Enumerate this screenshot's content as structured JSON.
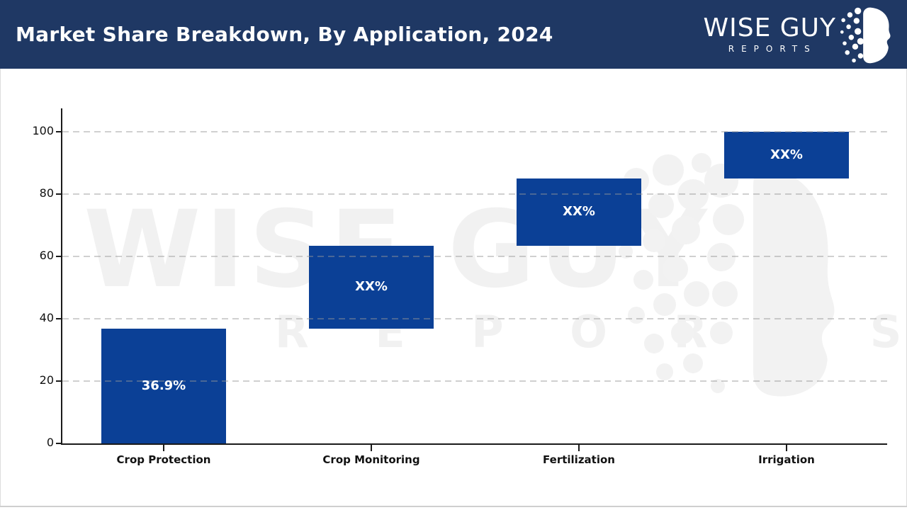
{
  "header": {
    "title": "Market Share Breakdown, By Application, 2024",
    "logo": {
      "line1": "WISE GUY",
      "line2": "REPORTS"
    }
  },
  "watermark": {
    "line1": "WISE GUY",
    "line2": "R E P O R T S"
  },
  "colors": {
    "header_bg": "#1F3864",
    "bar": "#0B4096",
    "axis": "#1a1a1a",
    "grid_dash": "#d8d8d8",
    "watermark": "#f1f1f1",
    "value_label": "#ffffff"
  },
  "chart_data": {
    "type": "bar",
    "subtype": "floating_segment_bars",
    "title": "Market Share Breakdown, By Application, 2024",
    "categories": [
      "Crop Protection",
      "Crop Monitoring",
      "Fertilization",
      "Irrigation"
    ],
    "series": [
      {
        "name": "Crop Protection",
        "start": 0,
        "end": 36.9,
        "label": "36.9%"
      },
      {
        "name": "Crop Monitoring",
        "start": 36.9,
        "end": 63.5,
        "label": "XX%"
      },
      {
        "name": "Fertilization",
        "start": 63.5,
        "end": 85.0,
        "label": "XX%"
      },
      {
        "name": "Irrigation",
        "start": 85.0,
        "end": 100.0,
        "label": "XX%"
      }
    ],
    "ylim": [
      0,
      100
    ],
    "yticks": [
      0,
      20,
      40,
      60,
      80,
      100
    ],
    "ytick_labels": [
      "0",
      "20",
      "40",
      "60",
      "80",
      "100"
    ],
    "grid": "horizontal-dashed",
    "legend": "none",
    "bar_color": "#0B4096",
    "value_label_color": "#ffffff"
  }
}
